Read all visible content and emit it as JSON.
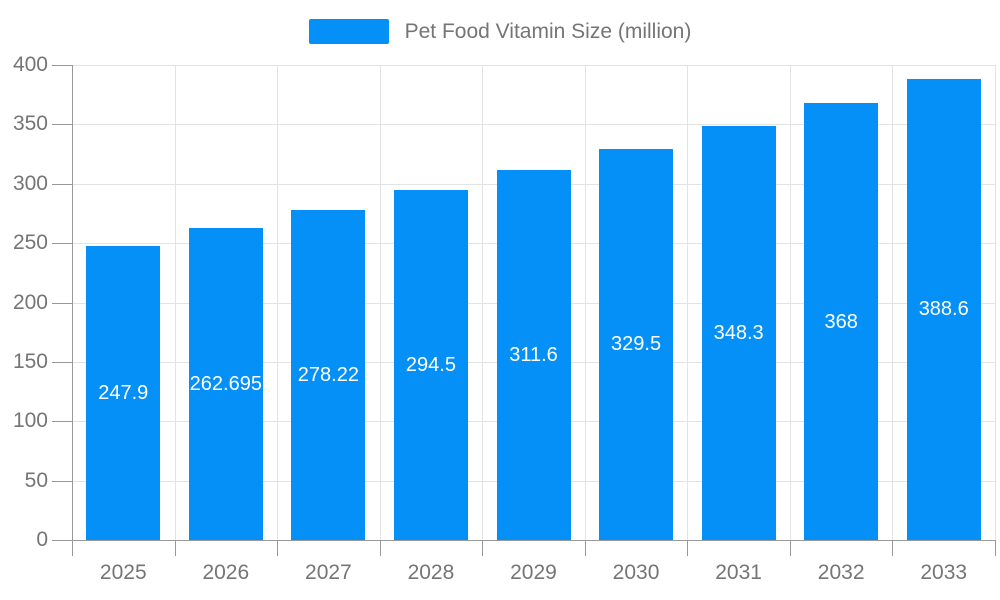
{
  "legend": {
    "label": "Pet Food Vitamin Size (million)"
  },
  "chart_data": {
    "type": "bar",
    "title": "Pet Food Vitamin Size (million)",
    "categories": [
      "2025",
      "2026",
      "2027",
      "2028",
      "2029",
      "2030",
      "2031",
      "2032",
      "2033"
    ],
    "series": [
      {
        "name": "Pet Food Vitamin Size (million)",
        "values": [
          247.9,
          262.695,
          278.22,
          294.5,
          311.6,
          329.5,
          348.3,
          368,
          388.6
        ],
        "value_labels": [
          "247.9",
          "262.695",
          "278.22",
          "294.5",
          "311.6",
          "329.5",
          "348.3",
          "368",
          "388.6"
        ]
      }
    ],
    "xlabel": "",
    "ylabel": "",
    "ylim": [
      0,
      400
    ],
    "yticks": [
      0,
      50,
      100,
      150,
      200,
      250,
      300,
      350,
      400
    ],
    "grid": true,
    "legend_position": "top",
    "value_label_position": "inside-middle"
  },
  "colors": {
    "bar": "#0590f8",
    "bar_value_text": "#ffffff",
    "axis_line": "#999999",
    "grid_line": "#e3e3e3",
    "tick_text": "#757575",
    "legend_text": "#757575",
    "background": "#ffffff"
  }
}
